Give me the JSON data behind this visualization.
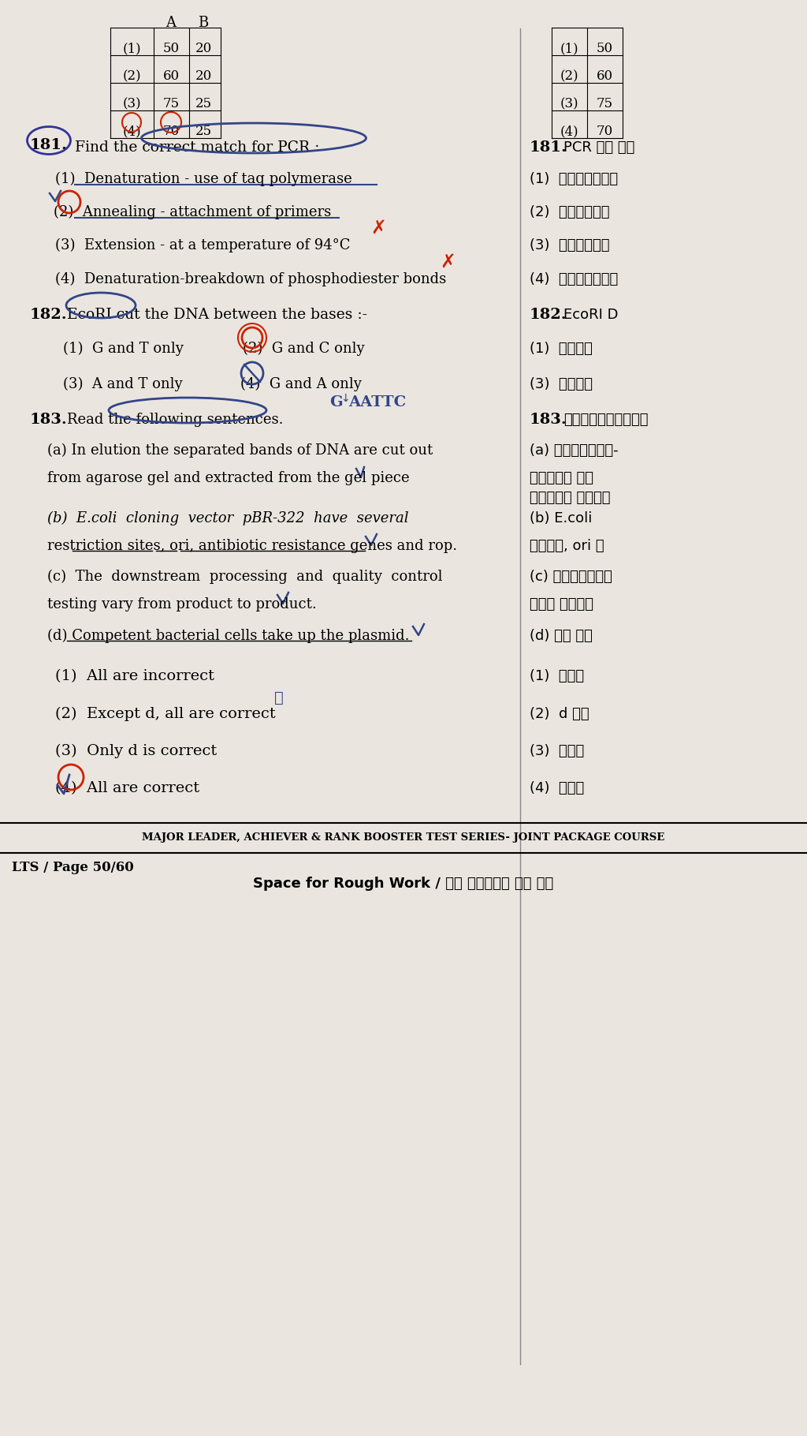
{
  "bg_color": "#d8d8d8",
  "page_bg": "#f0ede8",
  "footer_text": "MAJOR LEADER, ACHIEVER & RANK BOOSTER TEST SERIES- JOINT PACKAGE COURSE",
  "page_label": "LTS / Page 50/60",
  "rough_work": "Space for Rough Work / रफ कार्य के लि",
  "table_rows": [
    [
      "(1)",
      "50",
      "20"
    ],
    [
      "(2)",
      "60",
      "20"
    ],
    [
      "(3)",
      "75",
      "25"
    ],
    [
      "(4)",
      "70",
      "25"
    ]
  ],
  "right_table_rows": [
    [
      "(1)",
      "50"
    ],
    [
      "(2)",
      "60"
    ],
    [
      "(3)",
      "75"
    ],
    [
      "(4)",
      "70"
    ]
  ],
  "q181_right_text": "PCR के सं",
  "right_opt1": "(1)  निष्क्र",
  "right_opt2": "(2)  तापानु",
  "right_opt3": "(3)  प्रसार",
  "right_opt4": "(4)  निष्क्र",
  "q182_right_text": "EcoRI D",
  "right_q182_opt1": "(1)  केवल",
  "right_q182_opt3": "(3)  केवल",
  "q183_right_text": "निम्नलिखित",
  "right_q183a": "(a) इल्यूशन-",
  "right_q183a2": "काटकर अत",
  "right_q183a3": "निकाल लेते",
  "right_q183b": "(b) E.coli",
  "right_q183b2": "स्थल, ori स",
  "right_q183c": "(c) अनुप्रव",
  "right_q183c2": "अलग उत्प",
  "right_q183d": "(d) एक सक",
  "right_q183_ans1": "(1)  सभी",
  "right_q183_ans2": "(2)  d के",
  "right_q183_ans3": "(3)  केव",
  "right_q183_ans4": "(4)  सभी"
}
